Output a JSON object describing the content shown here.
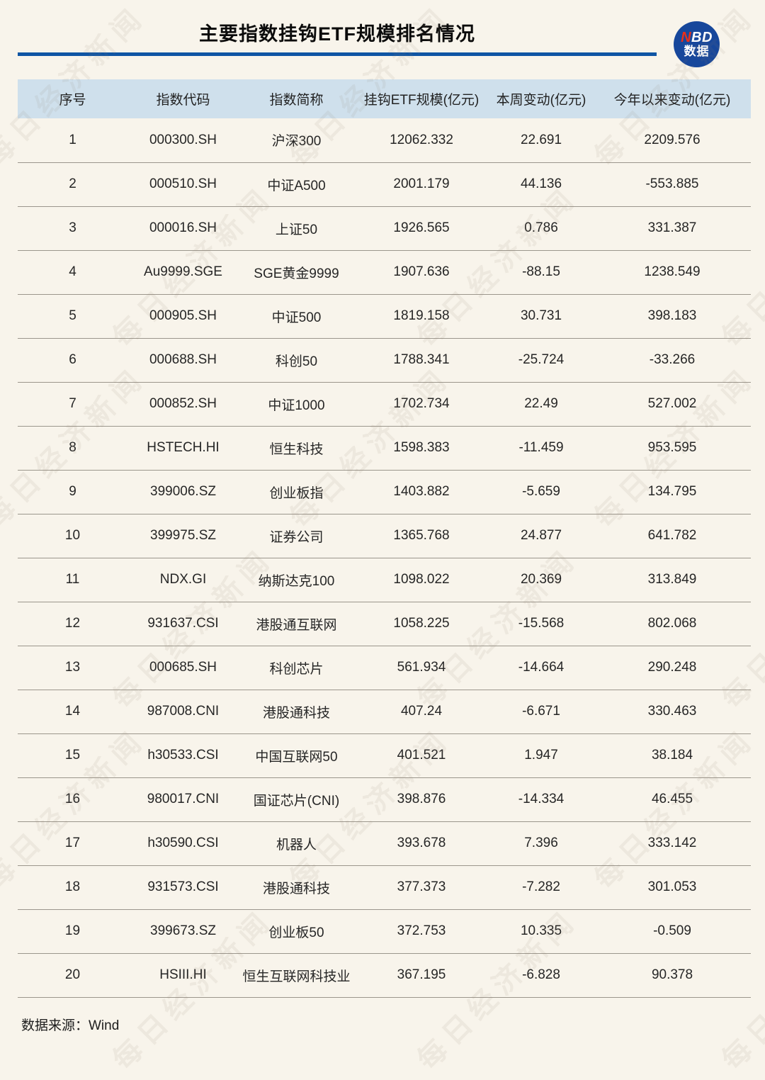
{
  "header": {
    "title": "主要指数挂钩ETF规模排名情况",
    "logo": {
      "line1_red": "N",
      "line1_rest": "BD",
      "line2": "数据"
    }
  },
  "watermark": {
    "text": "每日经济新闻"
  },
  "footer": {
    "source_label": "数据来源：Wind"
  },
  "colors": {
    "page_bg": "#f8f4eb",
    "accent_blue": "#0f55a4",
    "logo_blue": "#17479b",
    "logo_red": "#e8301c",
    "table_header_bg": "#cfe0ec",
    "row_divider": "#9b968c",
    "text": "#262626"
  },
  "chart_data": {
    "type": "table",
    "title": "主要指数挂钩ETF规模排名情况",
    "source": "Wind",
    "columns": [
      "序号",
      "指数代码",
      "指数简称",
      "挂钩ETF规模(亿元)",
      "本周变动(亿元)",
      "今年以来变动(亿元)"
    ],
    "rows": [
      [
        "1",
        "000300.SH",
        "沪深300",
        "12062.332",
        "22.691",
        "2209.576"
      ],
      [
        "2",
        "000510.SH",
        "中证A500",
        "2001.179",
        "44.136",
        "-553.885"
      ],
      [
        "3",
        "000016.SH",
        "上证50",
        "1926.565",
        "0.786",
        "331.387"
      ],
      [
        "4",
        "Au9999.SGE",
        "SGE黄金9999",
        "1907.636",
        "-88.15",
        "1238.549"
      ],
      [
        "5",
        "000905.SH",
        "中证500",
        "1819.158",
        "30.731",
        "398.183"
      ],
      [
        "6",
        "000688.SH",
        "科创50",
        "1788.341",
        "-25.724",
        "-33.266"
      ],
      [
        "7",
        "000852.SH",
        "中证1000",
        "1702.734",
        "22.49",
        "527.002"
      ],
      [
        "8",
        "HSTECH.HI",
        "恒生科技",
        "1598.383",
        "-11.459",
        "953.595"
      ],
      [
        "9",
        "399006.SZ",
        "创业板指",
        "1403.882",
        "-5.659",
        "134.795"
      ],
      [
        "10",
        "399975.SZ",
        "证券公司",
        "1365.768",
        "24.877",
        "641.782"
      ],
      [
        "11",
        "NDX.GI",
        "纳斯达克100",
        "1098.022",
        "20.369",
        "313.849"
      ],
      [
        "12",
        "931637.CSI",
        "港股通互联网",
        "1058.225",
        "-15.568",
        "802.068"
      ],
      [
        "13",
        "000685.SH",
        "科创芯片",
        "561.934",
        "-14.664",
        "290.248"
      ],
      [
        "14",
        "987008.CNI",
        "港股通科技",
        "407.24",
        "-6.671",
        "330.463"
      ],
      [
        "15",
        "h30533.CSI",
        "中国互联网50",
        "401.521",
        "1.947",
        "38.184"
      ],
      [
        "16",
        "980017.CNI",
        "国证芯片(CNI)",
        "398.876",
        "-14.334",
        "46.455"
      ],
      [
        "17",
        "h30590.CSI",
        "机器人",
        "393.678",
        "7.396",
        "333.142"
      ],
      [
        "18",
        "931573.CSI",
        "港股通科技",
        "377.373",
        "-7.282",
        "301.053"
      ],
      [
        "19",
        "399673.SZ",
        "创业板50",
        "372.753",
        "10.335",
        "-0.509"
      ],
      [
        "20",
        "HSIII.HI",
        "恒生互联网科技业",
        "367.195",
        "-6.828",
        "90.378"
      ]
    ]
  }
}
